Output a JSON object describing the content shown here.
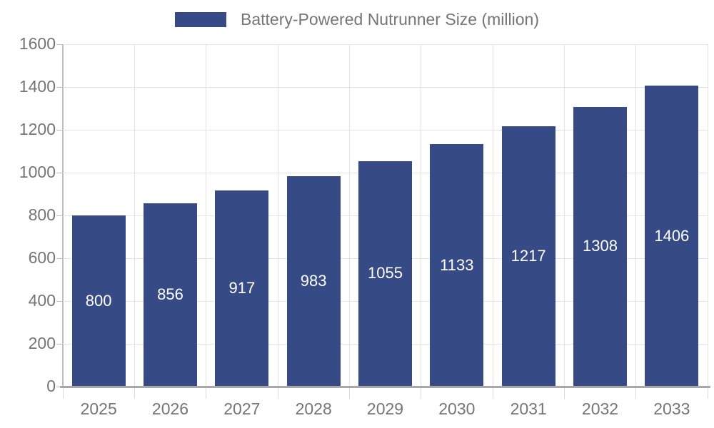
{
  "legend": {
    "label": "Battery-Powered Nutrunner Size (million)",
    "swatch_color": "#364A85"
  },
  "chart_data": {
    "type": "bar",
    "title": "Battery-Powered Nutrunner Size (million)",
    "categories": [
      "2025",
      "2026",
      "2027",
      "2028",
      "2029",
      "2030",
      "2031",
      "2032",
      "2033"
    ],
    "values": [
      800,
      856,
      917,
      983,
      1055,
      1133,
      1217,
      1308,
      1406
    ],
    "value_labels": [
      "800",
      "856",
      "917",
      "983",
      "1055",
      "1133",
      "1217",
      "1308",
      "1406"
    ],
    "xlabel": "",
    "ylabel": "",
    "ylim": [
      0,
      1600
    ],
    "ytick_step": 200,
    "y_tick_labels": [
      "0",
      "200",
      "400",
      "600",
      "800",
      "1000",
      "1200",
      "1400",
      "1600"
    ],
    "grid": true,
    "legend_position": "top",
    "bar_color": "#364A85",
    "value_label_color": "#ffffff",
    "axis_label_color": "#757575",
    "gridline_color": "#e3e3e3"
  }
}
